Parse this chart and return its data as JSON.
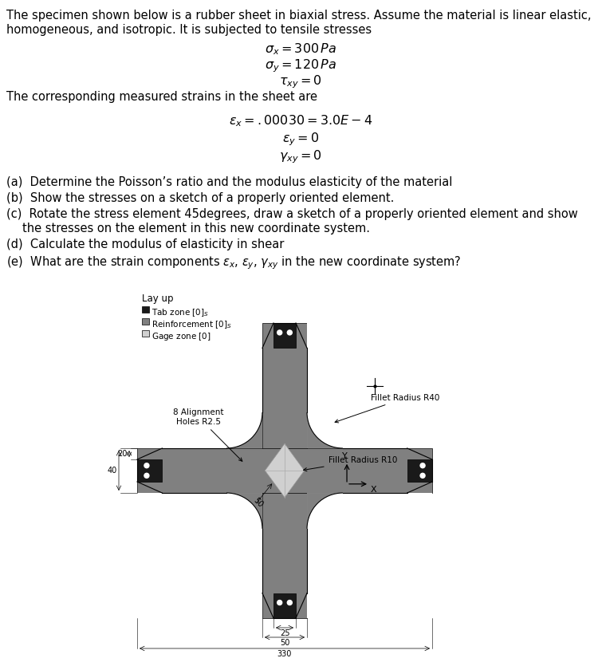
{
  "bg_color": "#ffffff",
  "text_color": "#000000",
  "tab_color": "#1a1a1a",
  "reinf_color": "#808080",
  "gage_color": "#d0d0d0",
  "legend_items": [
    {
      "label": "Tab zone $[0]_S$",
      "color": "#1a1a1a"
    },
    {
      "label": "Reinforcement $[0]_S$",
      "color": "#808080"
    },
    {
      "label": "Gage zone $[0]$",
      "color": "#d0d0d0"
    }
  ],
  "fillet_r40_label": "Fillet Radius R40",
  "fillet_r10_label": "Fillet Radius R10",
  "alignment_label": "8 Alignment\nHoles R2.5"
}
